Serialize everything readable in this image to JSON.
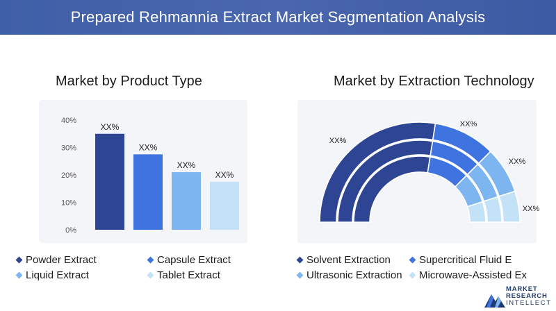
{
  "header": {
    "title": "Prepared Rehmannia Extract Market Segmentation Analysis"
  },
  "colors": {
    "header_bg": "#4562aa",
    "panel_bg": "#f4f5f8",
    "dark_blue": "#2d4593",
    "mid_blue": "#3f74e0",
    "light_blue": "#7cb5f0",
    "pale_blue": "#c3e2f8"
  },
  "chart_data": [
    {
      "type": "bar",
      "title": "Market by Product Type",
      "categories": [
        "Powder Extract",
        "Capsule Extract",
        "Liquid Extract",
        "Tablet Extract"
      ],
      "values": [
        35,
        27.5,
        21,
        17.5
      ],
      "data_labels": [
        "XX%",
        "XX%",
        "XX%",
        "XX%"
      ],
      "yticks": [
        "0%",
        "10%",
        "20%",
        "30%",
        "40%"
      ],
      "ylim": [
        0,
        40
      ],
      "colors": [
        "#2d4593",
        "#3f74e0",
        "#7cb5f0",
        "#c3e2f8"
      ],
      "legend": [
        "Powder Extract",
        "Capsule Extract",
        "Liquid Extract",
        "Tablet Extract"
      ]
    },
    {
      "type": "pie",
      "title": "Market by Extraction Technology",
      "categories": [
        "Solvent Extraction",
        "Supercritical Fluid E",
        "Ultrasonic Extraction",
        "Microwave-Assisted Ex"
      ],
      "values": [
        55,
        20,
        15,
        10
      ],
      "data_labels": [
        "XX%",
        "XX%",
        "XX%",
        "XX%"
      ],
      "colors": [
        "#2d4593",
        "#3f74e0",
        "#7cb5f0",
        "#c3e2f8"
      ],
      "legend": [
        "Solvent Extraction",
        "Supercritical Fluid E",
        "Ultrasonic Extraction",
        "Microwave-Assisted Ex"
      ]
    }
  ],
  "logo": {
    "line1": "MARKET",
    "line2": "RESEARCH",
    "line3": "INTELLECT"
  }
}
